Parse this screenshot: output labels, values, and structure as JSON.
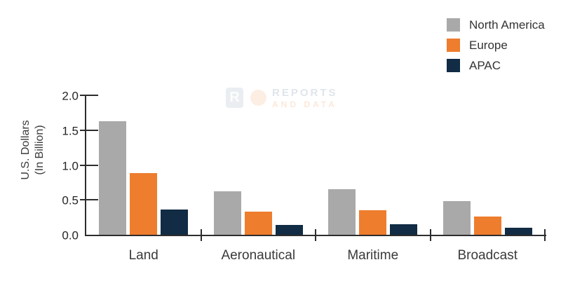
{
  "watermark": {
    "logo_letter": "R",
    "line1": "REPORTS",
    "line2": "AND DATA"
  },
  "chart_data": {
    "type": "bar",
    "title": "",
    "categories": [
      "Land",
      "Aeronautical",
      "Maritime",
      "Broadcast"
    ],
    "series": [
      {
        "name": "North America",
        "color": "#A9A9A9",
        "values": [
          1.63,
          0.62,
          0.65,
          0.48
        ]
      },
      {
        "name": "Europe",
        "color": "#EE7D2E",
        "values": [
          0.88,
          0.33,
          0.35,
          0.26
        ]
      },
      {
        "name": "APAC",
        "color": "#112C44",
        "values": [
          0.36,
          0.14,
          0.15,
          0.1
        ]
      }
    ],
    "ylabel_line1": "U.S. Dollars",
    "ylabel_line2": "(In Billion)",
    "xlabel": "",
    "yticks": [
      "0.0",
      "0.5",
      "1.0",
      "1.5",
      "2.0"
    ],
    "ytick_values": [
      0.0,
      0.5,
      1.0,
      1.5,
      2.0
    ],
    "ylim": [
      0.0,
      2.0
    ],
    "grid": false,
    "legend_position": "top-right",
    "axis_color": "#2d2d2d"
  }
}
